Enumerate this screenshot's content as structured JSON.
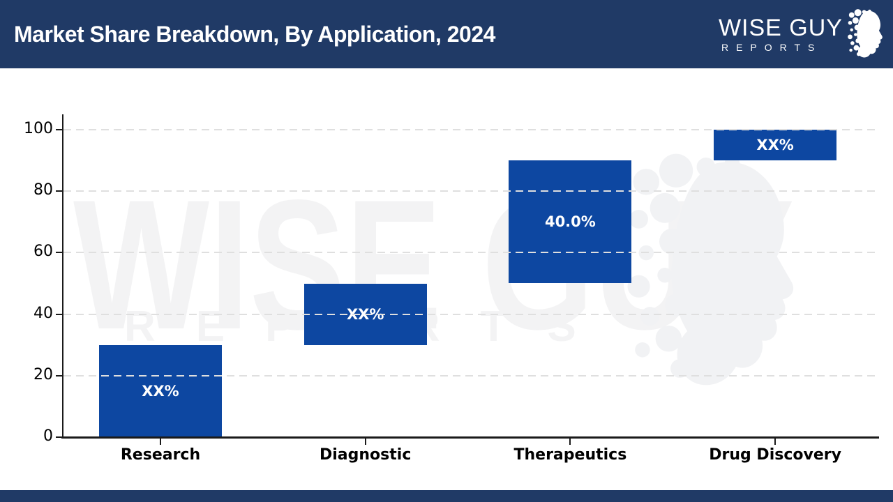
{
  "header": {
    "title": "Market Share Breakdown, By Application, 2024",
    "logo": {
      "line1": "WISE GUY",
      "line2": "REPORTS",
      "icon": "dotted-head-icon"
    }
  },
  "watermark": {
    "line1": "WISE GUY",
    "line2": "REPORTS",
    "icon": "dotted-head-watermark"
  },
  "chart_data": {
    "type": "bar",
    "variant": "floating-waterfall",
    "title": "Market Share Breakdown, By Application, 2024",
    "categories": [
      "Research",
      "Diagnostic",
      "Therapeutics",
      "Drug Discovery"
    ],
    "series": [
      {
        "name": "Market Share (%)",
        "segments": [
          {
            "category": "Research",
            "start": 0,
            "end": 30,
            "label": "XX%"
          },
          {
            "category": "Diagnostic",
            "start": 30,
            "end": 50,
            "label": "XX%"
          },
          {
            "category": "Therapeutics",
            "start": 50,
            "end": 90,
            "label": "40.0%"
          },
          {
            "category": "Drug Discovery",
            "start": 90,
            "end": 100,
            "label": "XX%"
          }
        ]
      }
    ],
    "yticks": [
      0,
      20,
      40,
      60,
      80,
      100
    ],
    "ylim": [
      0,
      105
    ],
    "xlabel": "",
    "ylabel": "",
    "grid": "dashed-horizontal",
    "legend": "none"
  },
  "colors": {
    "header_bg": "#203a66",
    "footer_bg": "#203a66",
    "bar": "#0d47a1",
    "bar_label": "#ffffff",
    "gridline": "#dfdfdf",
    "axis": "#1a1a1a",
    "watermark": "#f1f2f4",
    "background": "#ffffff"
  }
}
